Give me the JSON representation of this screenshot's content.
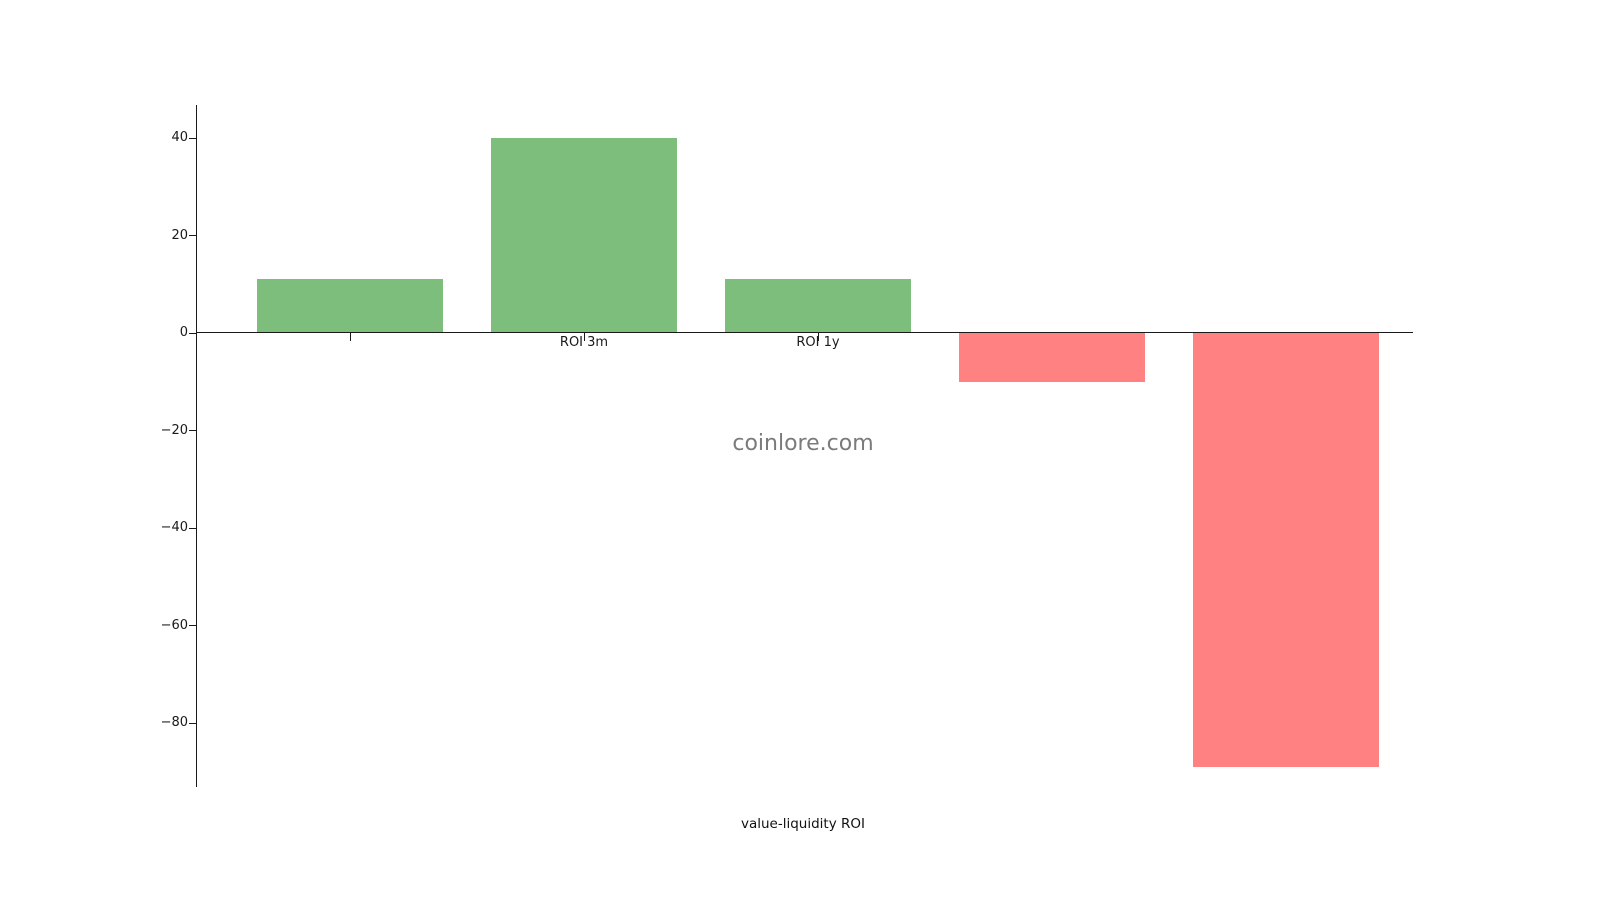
{
  "watermark": "coinlore.com",
  "chart_data": {
    "type": "bar",
    "title": "",
    "xlabel": "value-liquidity ROI",
    "ylabel": "",
    "categories": [
      "",
      "ROI 3m",
      "ROI 1y",
      "",
      ""
    ],
    "values": [
      11,
      40,
      11,
      -10,
      -89
    ],
    "yticks": [
      {
        "value": 40,
        "label": "40"
      },
      {
        "value": 20,
        "label": "20"
      },
      {
        "value": 0,
        "label": "0"
      },
      {
        "value": -20,
        "label": "−20"
      },
      {
        "value": -40,
        "label": "−40"
      },
      {
        "value": -60,
        "label": "−60"
      },
      {
        "value": -80,
        "label": "−80"
      }
    ],
    "ylim": [
      -93,
      47
    ],
    "positive_color": "#7dbe7d",
    "negative_color": "#ff8181",
    "axis_color": "#1a1a1a",
    "grid": false,
    "legend": null
  }
}
